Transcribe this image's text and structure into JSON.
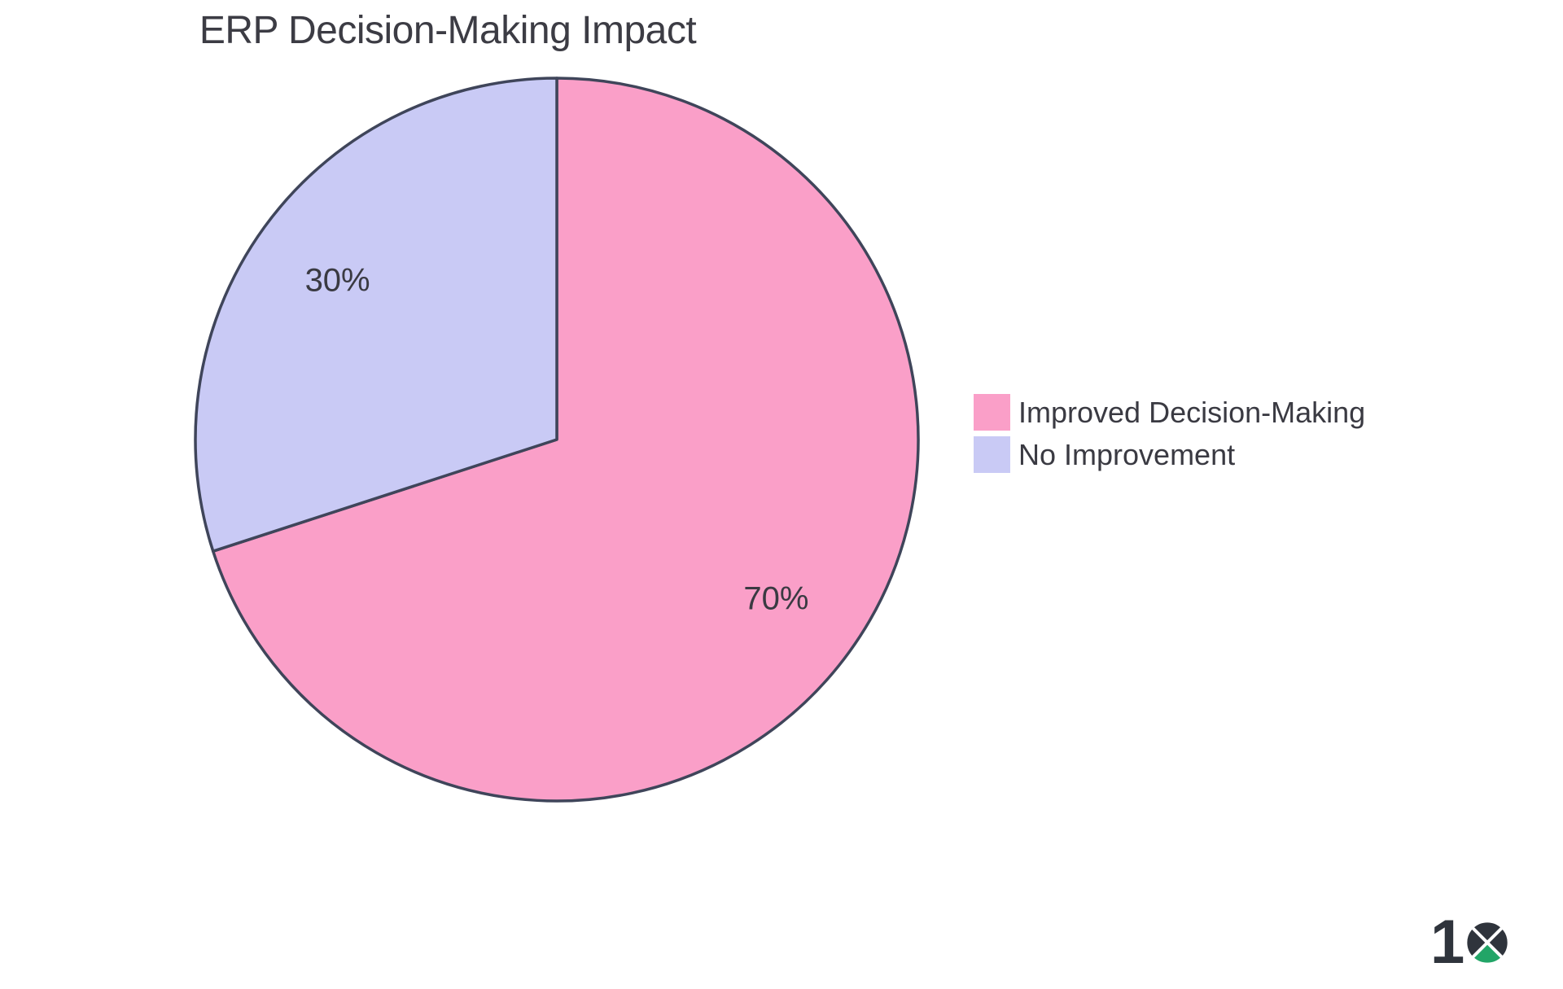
{
  "chart_data": {
    "type": "pie",
    "title": "ERP Decision-Making Impact",
    "slices": [
      {
        "label": "Improved Decision-Making",
        "value": 70,
        "display_label": "70%",
        "color": "#FA9FC8"
      },
      {
        "label": "No Improvement",
        "value": 30,
        "display_label": "30%",
        "color": "#C9CAF5"
      }
    ],
    "total": 100,
    "start_angle_deg": 0,
    "direction": "clockwise",
    "legend_position": "right",
    "slice_border_color": "#3F455A",
    "slice_border_width": 3.5,
    "label_color": "#3A3A42",
    "title_color": "#3C3C44",
    "background_color": "#FFFFFF"
  },
  "legend": {
    "items": [
      {
        "label": "Improved Decision-Making",
        "color": "#FA9FC8"
      },
      {
        "label": "No Improvement",
        "color": "#C9CAF5"
      }
    ]
  },
  "watermark": {
    "digit": "1",
    "icon": "quadrant-pie-icon",
    "dark_color": "#2F343C",
    "accent_color": "#22A567"
  }
}
